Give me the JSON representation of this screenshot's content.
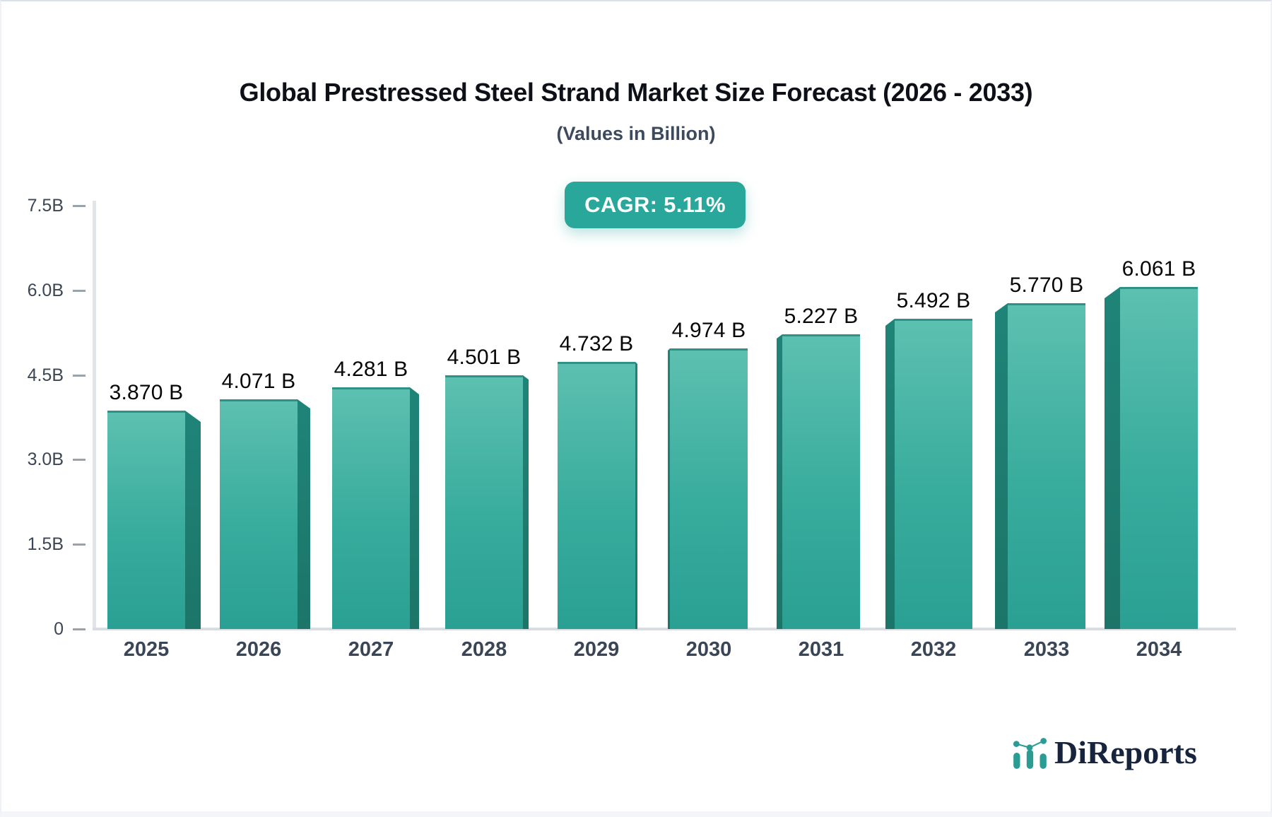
{
  "title": "Global Prestressed Steel Strand Market Size Forecast (2026 - 2033)",
  "subtitle": "(Values in Billion)",
  "badge": {
    "label": "CAGR: 5.11%"
  },
  "brand": {
    "name": "DiReports",
    "icon": "bar-chart-sparkline-icon"
  },
  "colors": {
    "badge_bg": "#2aa79b",
    "bar_top": "#5dc0b0",
    "bar_bottom": "#2aa093",
    "bar_side": "#1d7a6e",
    "axis": "#d8dce3",
    "tick": "#9aa2ae",
    "logo_teal": "#2b9c93",
    "logo_navy": "#17243d"
  },
  "chart_data": {
    "type": "bar",
    "style": "3d-perspective",
    "title": "Global Prestressed Steel Strand Market Size Forecast (2026 - 2033)",
    "subtitle": "(Values in Billion)",
    "annotation": "CAGR: 5.11%",
    "categories": [
      "2025",
      "2026",
      "2027",
      "2028",
      "2029",
      "2030",
      "2031",
      "2032",
      "2033",
      "2034"
    ],
    "values": [
      3.87,
      4.071,
      4.281,
      4.501,
      4.732,
      4.974,
      5.227,
      5.492,
      5.77,
      6.061
    ],
    "value_labels": [
      "3.870 B",
      "4.071 B",
      "4.281 B",
      "4.501 B",
      "4.732 B",
      "4.974 B",
      "5.227 B",
      "5.492 B",
      "5.770 B",
      "6.061 B"
    ],
    "xlabel": "",
    "ylabel": "",
    "ylim": [
      0,
      7.5
    ],
    "ytick_values": [
      7.5,
      6.0,
      4.5,
      3.0,
      1.5,
      0
    ],
    "ytick_labels": [
      "7.5B",
      "6.0B",
      "4.5B",
      "3.0B",
      "1.5B",
      "0"
    ],
    "grid": false,
    "legend": false
  }
}
